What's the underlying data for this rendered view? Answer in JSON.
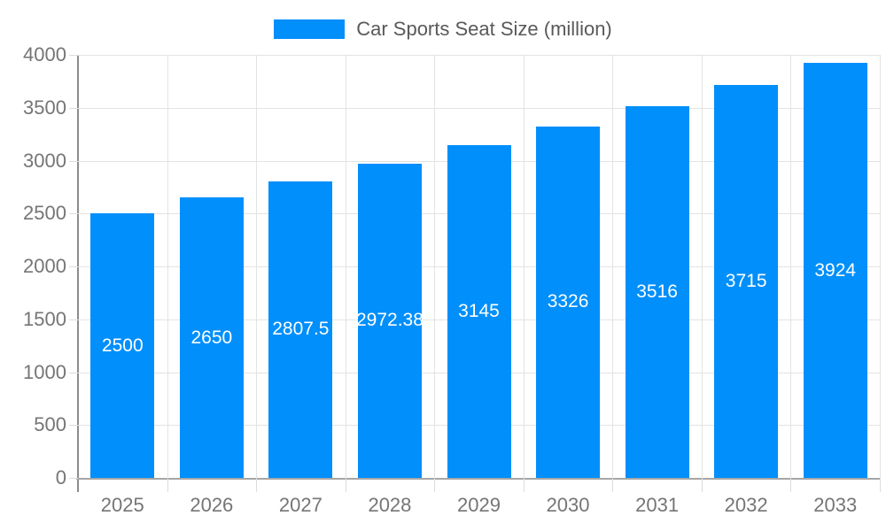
{
  "legend": {
    "label": "Car Sports Seat Size (million)"
  },
  "chart_data": {
    "type": "bar",
    "title": "Car Sports Seat Size (million)",
    "categories": [
      "2025",
      "2026",
      "2027",
      "2028",
      "2029",
      "2030",
      "2031",
      "2032",
      "2033"
    ],
    "series": [
      {
        "name": "Car Sports Seat Size (million)",
        "values": [
          2500,
          2650,
          2807.5,
          2972.38,
          3145,
          3326,
          3516,
          3715,
          3924
        ]
      }
    ],
    "data_labels": [
      "2500",
      "2650",
      "2807.5",
      "2972.38",
      "3145",
      "3326",
      "3516",
      "3715",
      "3924"
    ],
    "xlabel": "",
    "ylabel": "",
    "ylim": [
      0,
      4000
    ],
    "ytick_step": 500,
    "ytick_labels": [
      "0",
      "500",
      "1000",
      "1500",
      "2000",
      "2500",
      "3000",
      "3500",
      "4000"
    ],
    "grid": true,
    "legend_position": "top-center",
    "colors": {
      "bar": "#008FFB",
      "grid": "#e3e3e3",
      "y_axis_line": "#8c8c8c",
      "x_axis_line": "#a6a6a6",
      "tick_text": "#757575",
      "legend_text": "#58595b",
      "value_text": "#ffffff"
    }
  }
}
